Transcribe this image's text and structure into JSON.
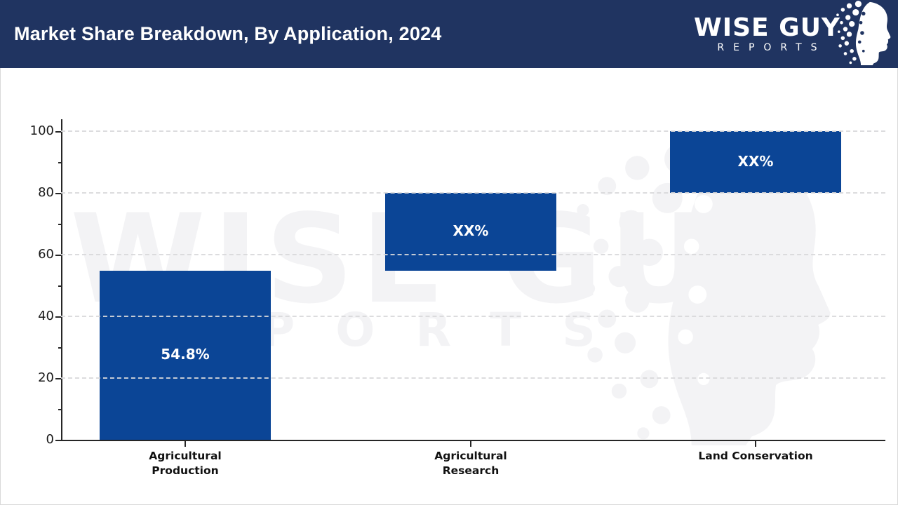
{
  "header": {
    "title": "Market Share Breakdown, By Application, 2024",
    "bg_color": "#203461",
    "logo": {
      "line1": "WISE GUY",
      "line2": "REPORTS"
    }
  },
  "watermark": {
    "line1": "WISE GUY",
    "line2": "REPORTS"
  },
  "chart_data": {
    "type": "bar",
    "subtype": "waterfall",
    "title": "Market Share Breakdown, By Application, 2024",
    "categories": [
      "Agricultural\nProduction",
      "Agricultural\nResearch",
      "Land Conservation"
    ],
    "bars": [
      {
        "category": "Agricultural Production",
        "base": 0,
        "top": 54.8,
        "label": "54.8%"
      },
      {
        "category": "Agricultural Research",
        "base": 54.8,
        "top": 80,
        "label": "XX%"
      },
      {
        "category": "Land Conservation",
        "base": 80,
        "top": 100,
        "label": "XX%"
      }
    ],
    "yticks": [
      0,
      20,
      40,
      60,
      80,
      100
    ],
    "minor_yticks": [
      10,
      30,
      50,
      70,
      90
    ],
    "ylim": [
      0,
      105
    ],
    "grid": {
      "show": true,
      "style": "dashed",
      "orientation": "horizontal"
    },
    "legend": null,
    "colors": {
      "bar": "#0b4596",
      "bar_label": "#ffffff",
      "axis": "#262626",
      "tick_label": "#1a1a1a",
      "gridline": "#dcdcdc",
      "header_bg": "#203461",
      "watermark": "#f3f3f5"
    }
  }
}
